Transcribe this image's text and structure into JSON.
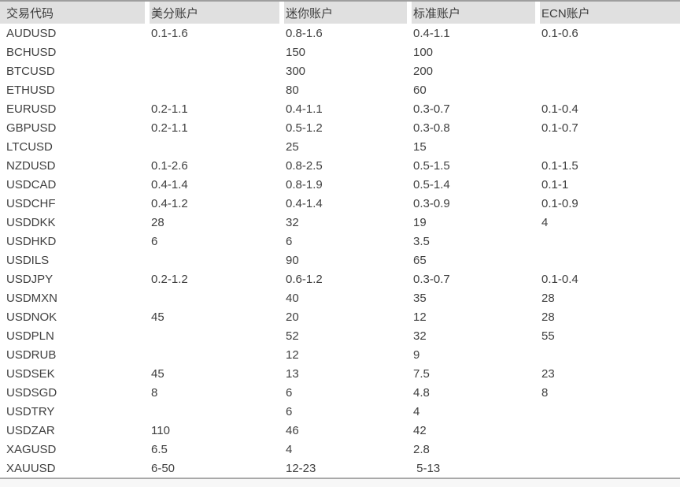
{
  "table": {
    "headers": [
      "交易代码",
      "美分账户",
      "迷你账户",
      "标准账户",
      "ECN账户"
    ],
    "rows": [
      {
        "symbol": "AUDUSD",
        "cent": "0.1-1.6",
        "mini": "0.8-1.6",
        "standard": "0.4-1.1",
        "ecn": "0.1-0.6"
      },
      {
        "symbol": "BCHUSD",
        "cent": "",
        "mini": "150",
        "standard": "100",
        "ecn": ""
      },
      {
        "symbol": "BTCUSD",
        "cent": "",
        "mini": "300",
        "standard": "200",
        "ecn": ""
      },
      {
        "symbol": "ETHUSD",
        "cent": "",
        "mini": "80",
        "standard": "60",
        "ecn": ""
      },
      {
        "symbol": "EURUSD",
        "cent": "0.2-1.1",
        "mini": "0.4-1.1",
        "standard": "0.3-0.7",
        "ecn": "0.1-0.4"
      },
      {
        "symbol": "GBPUSD",
        "cent": "0.2-1.1",
        "mini": "0.5-1.2",
        "standard": "0.3-0.8",
        "ecn": "0.1-0.7"
      },
      {
        "symbol": "LTCUSD",
        "cent": "",
        "mini": "25",
        "standard": "15",
        "ecn": ""
      },
      {
        "symbol": "NZDUSD",
        "cent": "0.1-2.6",
        "mini": "0.8-2.5",
        "standard": "0.5-1.5",
        "ecn": "0.1-1.5"
      },
      {
        "symbol": "USDCAD",
        "cent": "0.4-1.4",
        "mini": "0.8-1.9",
        "standard": "0.5-1.4",
        "ecn": "0.1-1"
      },
      {
        "symbol": "USDCHF",
        "cent": "0.4-1.2",
        "mini": "0.4-1.4",
        "standard": "0.3-0.9",
        "ecn": "0.1-0.9"
      },
      {
        "symbol": "USDDKK",
        "cent": "28",
        "mini": "32",
        "standard": "19",
        "ecn": "4"
      },
      {
        "symbol": "USDHKD",
        "cent": "6",
        "mini": "6",
        "standard": "3.5",
        "ecn": ""
      },
      {
        "symbol": "USDILS",
        "cent": "",
        "mini": "90",
        "standard": "65",
        "ecn": ""
      },
      {
        "symbol": "USDJPY",
        "cent": "0.2-1.2",
        "mini": "0.6-1.2",
        "standard": "0.3-0.7",
        "ecn": "0.1-0.4"
      },
      {
        "symbol": "USDMXN",
        "cent": "",
        "mini": "40",
        "standard": "35",
        "ecn": "28"
      },
      {
        "symbol": "USDNOK",
        "cent": "45",
        "mini": "20",
        "standard": "12",
        "ecn": "28"
      },
      {
        "symbol": "USDPLN",
        "cent": "",
        "mini": "52",
        "standard": "32",
        "ecn": "55"
      },
      {
        "symbol": "USDRUB",
        "cent": "",
        "mini": "12",
        "standard": "9",
        "ecn": ""
      },
      {
        "symbol": "USDSEK",
        "cent": "45",
        "mini": "13",
        "standard": "7.5",
        "ecn": "23"
      },
      {
        "symbol": "USDSGD",
        "cent": "8",
        "mini": "6",
        "standard": "4.8",
        "ecn": "8"
      },
      {
        "symbol": "USDTRY",
        "cent": "",
        "mini": "6",
        "standard": "4",
        "ecn": ""
      },
      {
        "symbol": "USDZAR",
        "cent": "110",
        "mini": "46",
        "standard": "42",
        "ecn": ""
      },
      {
        "symbol": "XAGUSD",
        "cent": "6.5",
        "mini": "4",
        "standard": "2.8",
        "ecn": ""
      },
      {
        "symbol": "XAUUSD",
        "cent": "6-50",
        "mini": "12-23",
        "standard": " 5-13",
        "ecn": ""
      }
    ]
  },
  "colors": {
    "header_background": "#e0e0e0",
    "top_border": "#9e9e9e",
    "bottom_border": "#a9a9a9",
    "text": "#3f3f3f"
  }
}
